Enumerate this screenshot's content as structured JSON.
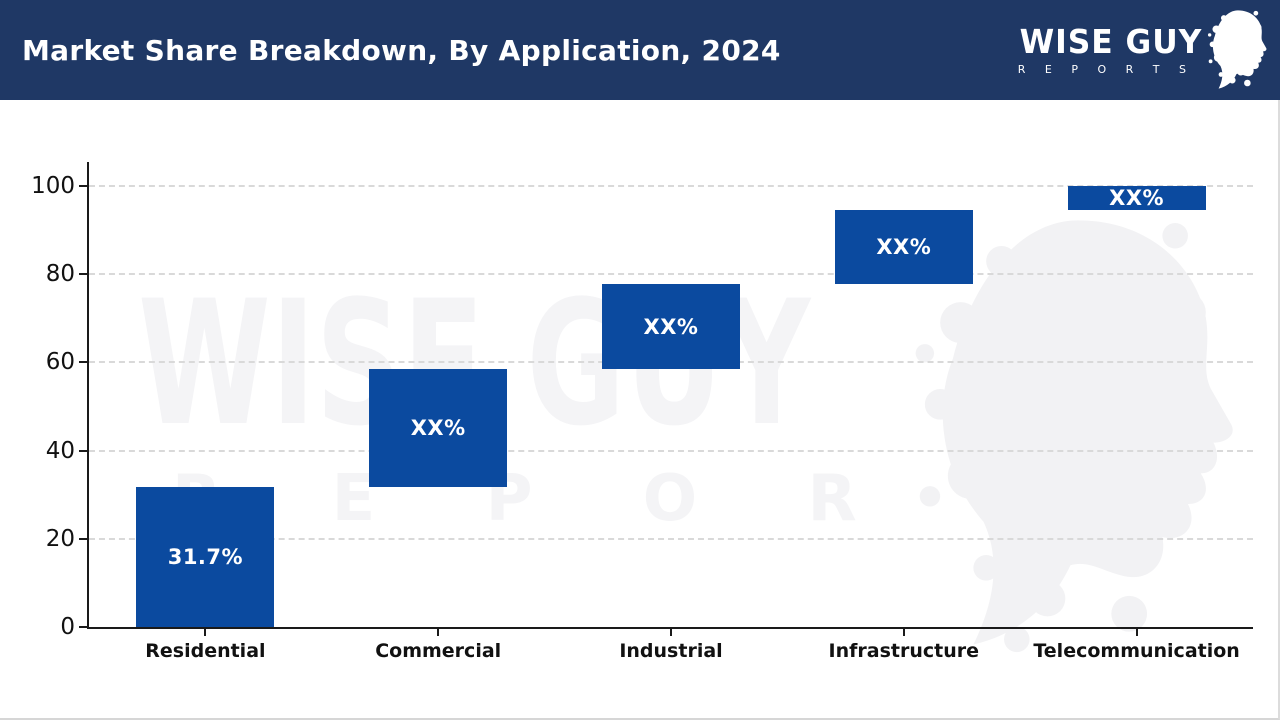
{
  "header": {
    "title": "Market Share Breakdown, By Application, 2024",
    "background_color": "#1f3865",
    "logo": {
      "line1": "WISE GUY",
      "line2": "R E P O R T S",
      "face_icon": "dotted-head-profile"
    }
  },
  "watermark": {
    "line1": "WISE GUY",
    "line2": "R E P O R T S",
    "color": "#f4f4f6"
  },
  "chart_data": {
    "type": "bar",
    "subtype": "waterfall",
    "title": "Market Share Breakdown, By Application, 2024",
    "xlabel": "",
    "ylabel": "",
    "categories": [
      "Residential",
      "Commercial",
      "Industrial",
      "Infrastructure",
      "Telecommunication"
    ],
    "bars": [
      {
        "category": "Residential",
        "start": 0,
        "end": 31.7,
        "label": "31.7%"
      },
      {
        "category": "Commercial",
        "start": 31.7,
        "end": 58.4,
        "label": "XX%"
      },
      {
        "category": "Industrial",
        "start": 58.4,
        "end": 77.7,
        "label": "XX%"
      },
      {
        "category": "Infrastructure",
        "start": 77.7,
        "end": 94.6,
        "label": "XX%"
      },
      {
        "category": "Telecommunication",
        "start": 94.6,
        "end": 100,
        "label": "XX%"
      }
    ],
    "ylim": [
      0,
      100
    ],
    "yticks": [
      0,
      20,
      40,
      60,
      80,
      100
    ],
    "grid": "horizontal-dashed",
    "gridline_color": "#d9d9d9",
    "bar_color": "#0b4a9f",
    "bar_label_color": "#ffffff",
    "legend": "none"
  }
}
